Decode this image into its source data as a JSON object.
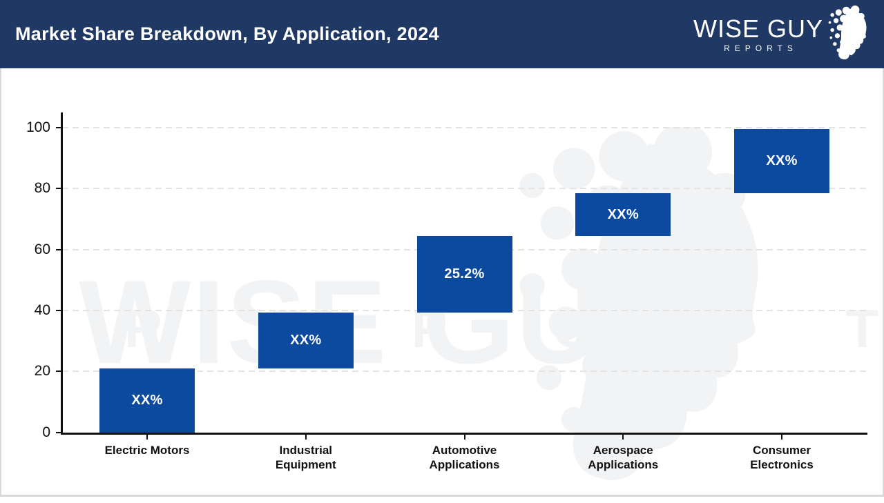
{
  "header": {
    "title": "Market Share Breakdown, By Application, 2024",
    "logo": {
      "line1": "WISE GUY",
      "line2": "REPORTS"
    }
  },
  "watermark": {
    "line1": "WISE GUY",
    "line2": "R E P O R T S"
  },
  "colors": {
    "header_bg": "#1f3864",
    "bar_blue": "#0b4a9e",
    "grid_gray": "#e3e3e3",
    "axis_black": "#111111",
    "watermark_gray": "#f2f3f5",
    "bar_label_white": "#ffffff"
  },
  "chart_data": {
    "type": "bar",
    "subtype": "waterfall-floating-bars",
    "title": "Market Share Breakdown, By Application, 2024",
    "categories": [
      "Electric Motors",
      "Industrial\nEquipment",
      "Automotive\nApplications",
      "Aerospace\nApplications",
      "Consumer\nElectronics"
    ],
    "bars": [
      {
        "category": "Electric Motors",
        "start": 0,
        "end": 21,
        "label": "XX%"
      },
      {
        "category": "Industrial Equipment",
        "start": 21,
        "end": 39.3,
        "label": "XX%"
      },
      {
        "category": "Automotive Applications",
        "start": 39.3,
        "end": 64.5,
        "label": "25.2%"
      },
      {
        "category": "Aerospace Applications",
        "start": 64.5,
        "end": 78.4,
        "label": "XX%"
      },
      {
        "category": "Consumer Electronics",
        "start": 78.4,
        "end": 99.6,
        "label": "XX%"
      }
    ],
    "y_ticks": [
      0,
      20,
      40,
      60,
      80,
      100
    ],
    "ylim": [
      0,
      105
    ],
    "xlabel": "",
    "ylabel": "",
    "grid": "horizontal-dashed",
    "legend": "none"
  }
}
